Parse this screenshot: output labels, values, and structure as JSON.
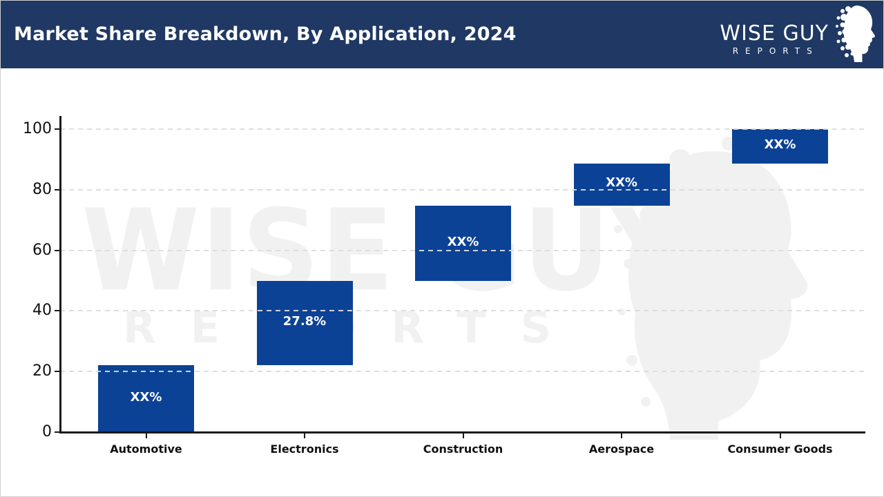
{
  "header": {
    "title": "Market Share Breakdown, By Application, 2024",
    "bg_color": "#1f3864",
    "logo": {
      "line1": "WISE GUY",
      "line2": "REPORTS"
    }
  },
  "watermark": {
    "line1": "WISE GUY",
    "line2": "REPORTS"
  },
  "chart_data": {
    "type": "bar",
    "subtype": "waterfall",
    "title": "Market Share Breakdown, By Application, 2024",
    "categories": [
      "Automotive",
      "Electronics",
      "Construction",
      "Aerospace",
      "Consumer Goods"
    ],
    "segments": [
      {
        "category": "Automotive",
        "start": 0,
        "end": 22,
        "label": "XX%"
      },
      {
        "category": "Electronics",
        "start": 22,
        "end": 49.8,
        "label": "27.8%"
      },
      {
        "category": "Construction",
        "start": 49.8,
        "end": 74.8,
        "label": "XX%"
      },
      {
        "category": "Aerospace",
        "start": 74.8,
        "end": 88.7,
        "label": "XX%"
      },
      {
        "category": "Consumer Goods",
        "start": 88.7,
        "end": 100,
        "label": "XX%"
      }
    ],
    "yticks": [
      0,
      20,
      40,
      60,
      80,
      100
    ],
    "ylim": [
      0,
      104
    ],
    "xlabel": "",
    "ylabel": "",
    "grid": true,
    "legend": "none",
    "bar_color": "#0c4296",
    "bar_label_color": "#ffffff",
    "axis_color": "#1a1a1a"
  }
}
